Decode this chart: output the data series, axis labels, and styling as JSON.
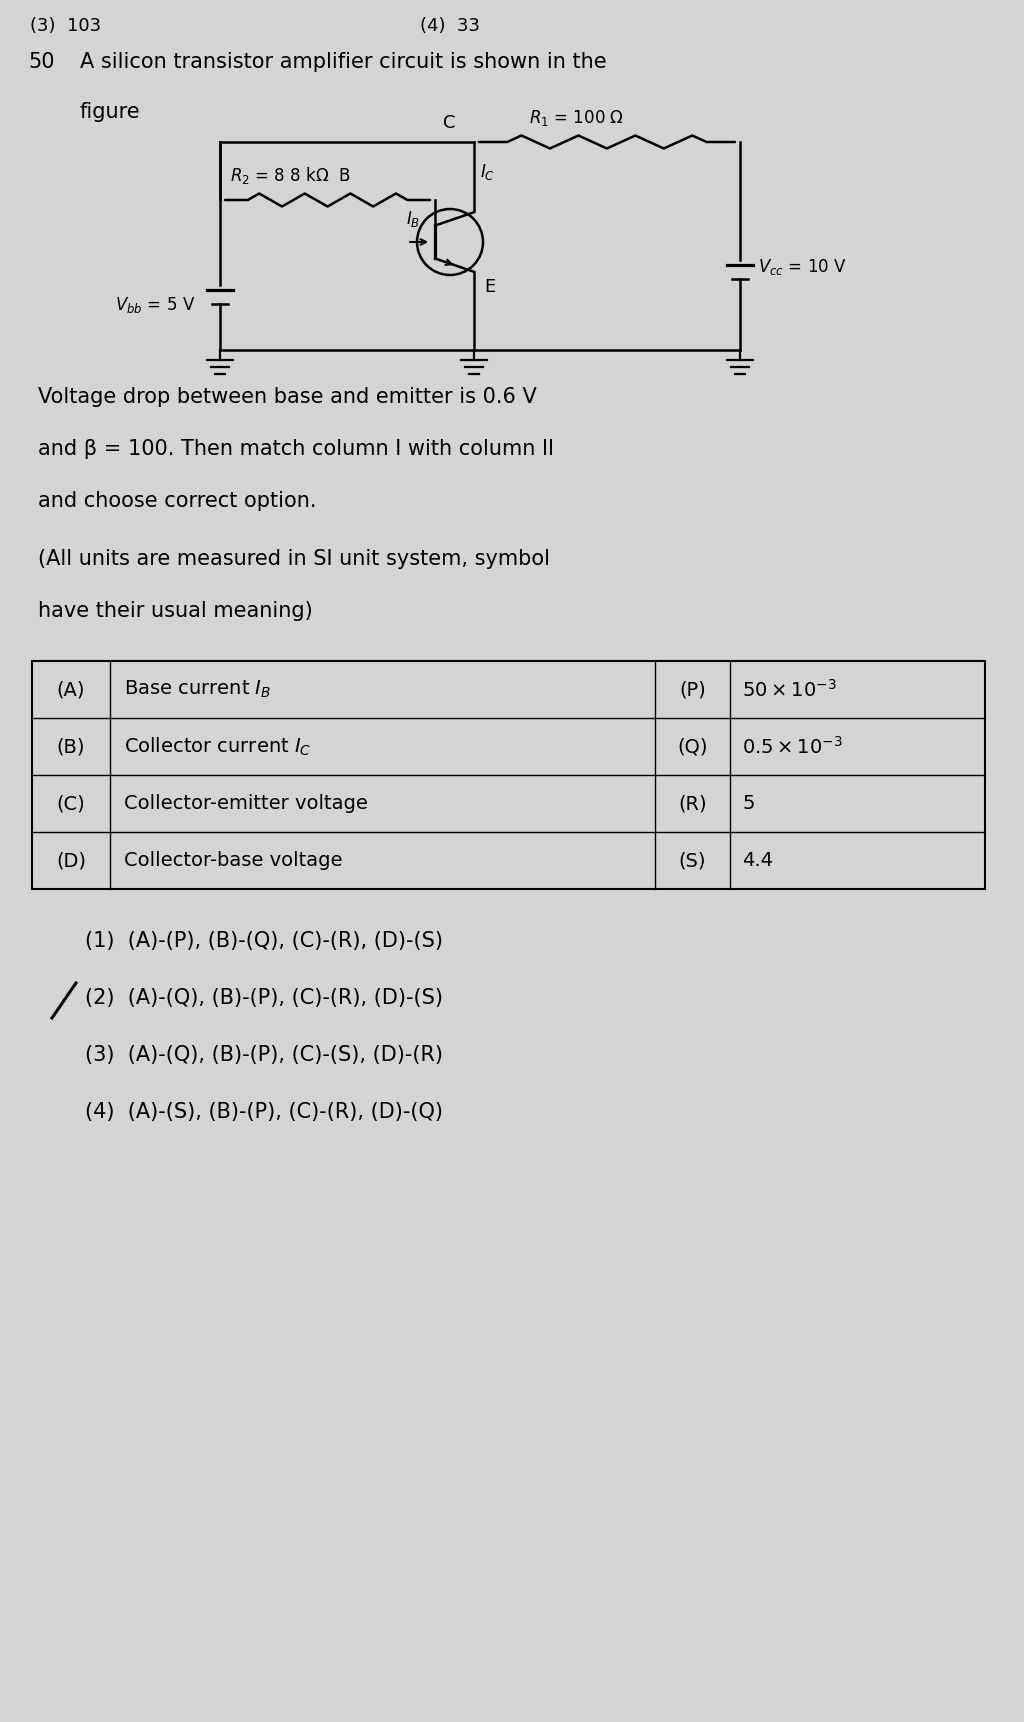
{
  "bg_color": "#d4d4d4",
  "top_text_left": "(3)  103",
  "top_text_right": "(4)  33",
  "question_num": "50",
  "q_line1": "A silicon transistor amplifier circuit is shown in the",
  "q_line2": "figure",
  "para1_line1": "Voltage drop between base and emitter is 0.6 V",
  "para1_line2": "and β = 100. Then match column I with column II",
  "para1_line3": "and choose correct option.",
  "para2_line1": "(All units are measured in SI unit system, symbol",
  "para2_line2": "have their usual meaning)",
  "table_data": [
    [
      "(A)",
      "Base current $I_B$",
      "(P)",
      "$50 \\times 10^{-3}$"
    ],
    [
      "(B)",
      "Collector current $I_C$",
      "(Q)",
      "$0.5 \\times 10^{-3}$"
    ],
    [
      "(C)",
      "Collector-emitter voltage",
      "(R)",
      "5"
    ],
    [
      "(D)",
      "Collector-base voltage",
      "(S)",
      "4.4"
    ]
  ],
  "options": [
    "(1)  (A)-(P), (B)-(Q), (C)-(R), (D)-(S)",
    "(2)  (A)-(Q), (B)-(P), (C)-(R), (D)-(S)",
    "(3)  (A)-(Q), (B)-(P), (C)-(S), (D)-(R)",
    "(4)  (A)-(S), (B)-(P), (C)-(R), (D)-(Q)"
  ],
  "font_size_main": 15,
  "font_size_small": 13,
  "font_size_table": 14,
  "font_size_circuit": 12
}
